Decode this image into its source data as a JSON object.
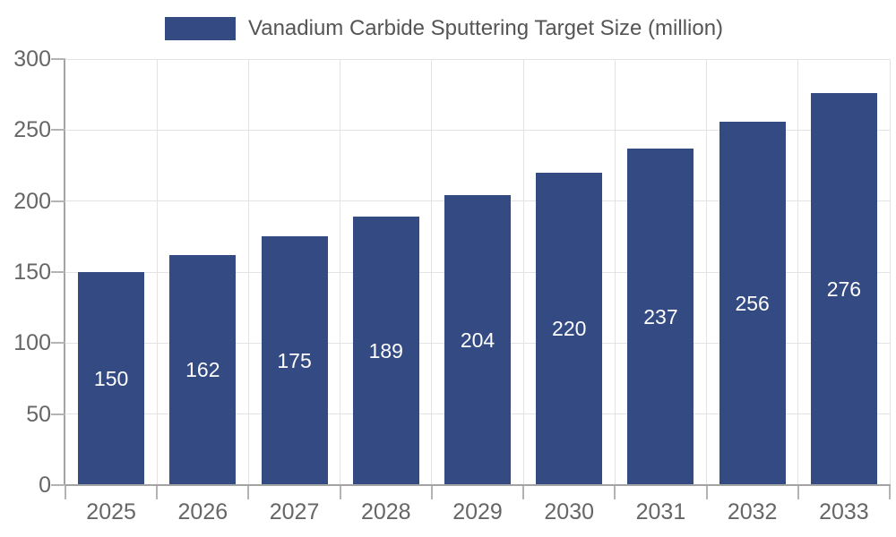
{
  "legend": {
    "label": "Vanadium Carbide Sputtering Target Size (million)"
  },
  "chart_data": {
    "type": "bar",
    "title": "Vanadium Carbide Sputtering Target Size (million)",
    "series_name": "Vanadium Carbide Sputtering Target Size (million)",
    "categories": [
      "2025",
      "2026",
      "2027",
      "2028",
      "2029",
      "2030",
      "2031",
      "2032",
      "2033"
    ],
    "values": [
      150,
      162,
      175,
      189,
      204,
      220,
      237,
      256,
      276
    ],
    "value_labels": [
      "150",
      "162",
      "175",
      "189",
      "204",
      "220",
      "237",
      "256",
      "276"
    ],
    "xlabel": "",
    "ylabel": "",
    "ylim": [
      0,
      300
    ],
    "yticks": [
      0,
      50,
      100,
      150,
      200,
      250,
      300
    ],
    "ytick_labels": [
      "0",
      "50",
      "100",
      "150",
      "200",
      "250",
      "300"
    ],
    "grid": true,
    "legend_position": "top",
    "colors": {
      "bar": "#344a82",
      "value_label": "#ffffff",
      "grid": "#e3e3e6",
      "axis": "#a3a3a3",
      "tick": "#b3b3b3",
      "tick_label": "#666666",
      "legend_text": "#555555"
    }
  }
}
